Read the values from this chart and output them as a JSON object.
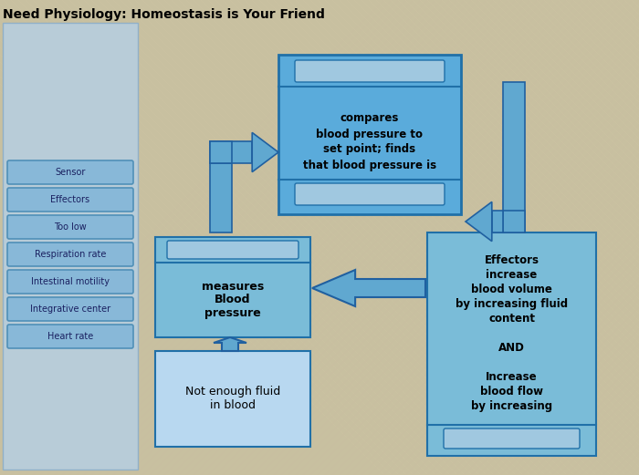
{
  "title": "Need Physiology: Homeostasis is Your Friend",
  "title_fontsize": 10,
  "background_color": "#c8c0a0",
  "left_panel_color": "#b8ccd8",
  "sidebar_buttons": [
    "Sensor",
    "Effectors",
    "Too low",
    "Respiration rate",
    "Intestinal motility",
    "Integrative center",
    "Heart rate"
  ],
  "sidebar_button_color": "#88b8d8",
  "sidebar_button_border": "#5090b8",
  "box_sensor_text": "compares\nblood pressure to\nset point; finds\nthat blood pressure is",
  "box_sensor_color": "#5aabdb",
  "box_measures_text": "measures\nBlood\npressure",
  "box_measures_color": "#7abcd8",
  "box_not_enough_text": "Not enough fluid\nin blood",
  "box_not_enough_color": "#b8d8f0",
  "box_effectors_text": "Effectors\nincrease\nblood volume\nby increasing fluid\ncontent\n\nAND\n\nIncrease\nblood flow\nby increasing",
  "box_effectors_color": "#7abcd8",
  "arrow_color": "#60a8d0",
  "arrow_edge_color": "#2060a0",
  "inner_box_color": "#a0c8e0",
  "text_color": "#000000",
  "diag_bg_color1": "#ccc0a0",
  "diag_bg_color2": "#d8ccb0"
}
